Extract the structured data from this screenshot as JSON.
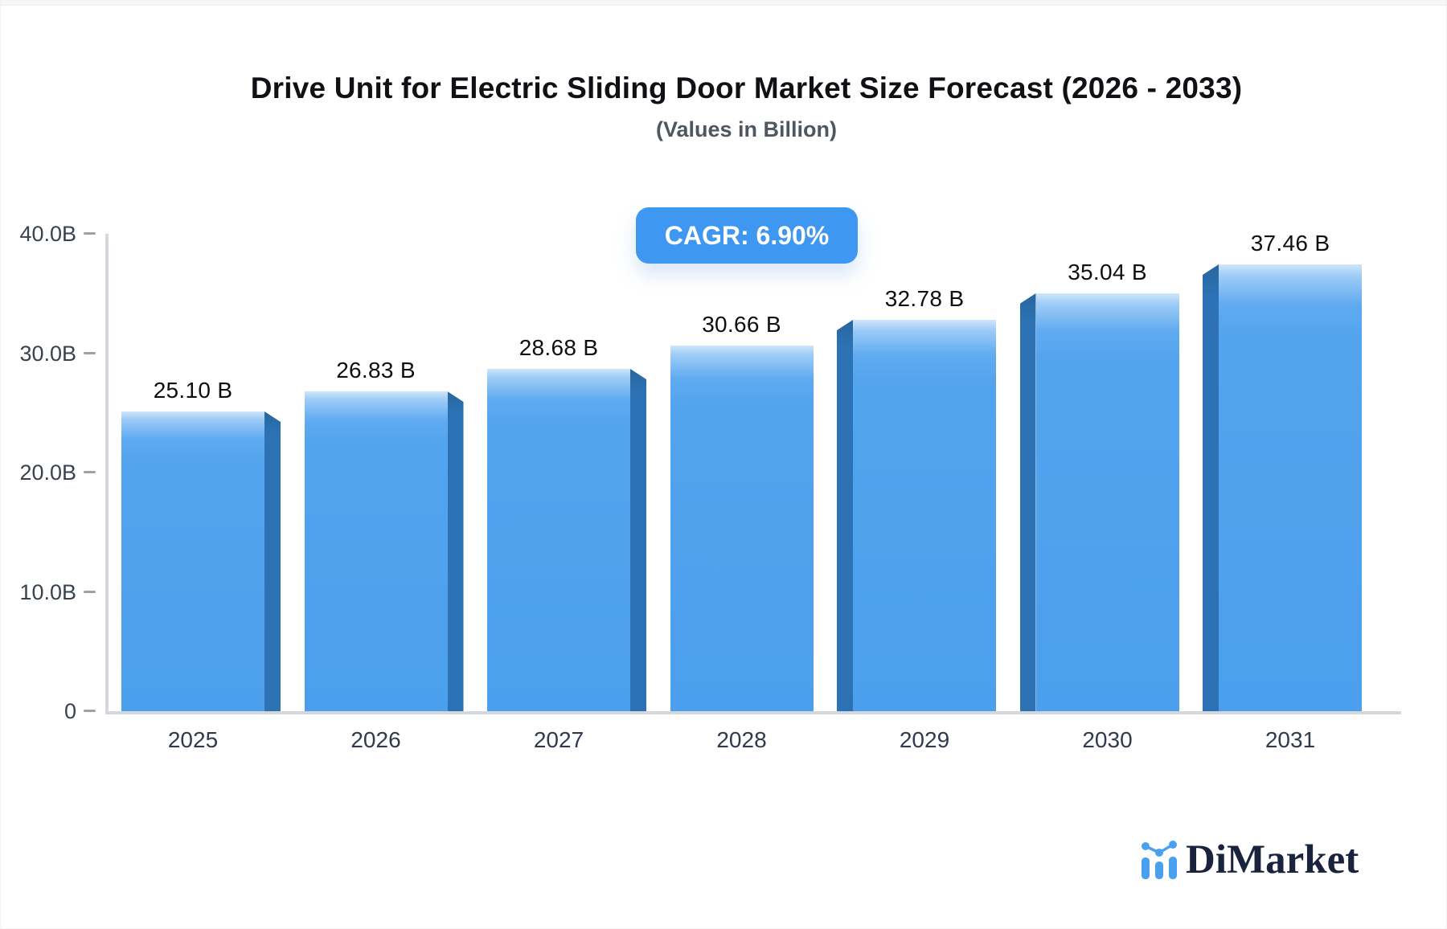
{
  "header": {
    "title": "Drive Unit for Electric Sliding Door Market Size Forecast (2026 - 2033)",
    "subtitle": "(Values in Billion)",
    "cagr_label": "CAGR: 6.90%"
  },
  "footer": {
    "brand": "DiMarket",
    "brand_icon": "bar-line-chart-icon"
  },
  "colors": {
    "bar_face": "#4c9fec",
    "bar_face_highlight": "#9fccf7",
    "bar_side": "#2d72b4",
    "badge_bg": "#3e97f0",
    "axis_line": "#d4d8dc",
    "tick_text": "#39424e",
    "year_text": "#2f3b4c",
    "value_text": "#0d0f12",
    "brand_blue": "#4aa0f0",
    "brand_navy": "#19233e"
  },
  "chart_data": {
    "type": "bar",
    "title": "Drive Unit for Electric Sliding Door Market Size Forecast (2026 - 2033)",
    "subtitle": "(Values in Billion)",
    "annotation": "CAGR: 6.90%",
    "categories": [
      "2025",
      "2026",
      "2027",
      "2028",
      "2029",
      "2030",
      "2031"
    ],
    "values": [
      25.1,
      26.83,
      28.68,
      30.66,
      32.78,
      35.04,
      37.46
    ],
    "value_labels": [
      "25.10 B",
      "26.83 B",
      "28.68 B",
      "30.66 B",
      "32.78 B",
      "35.04 B",
      "37.46 B"
    ],
    "xlabel": "",
    "ylabel": "",
    "ylim": [
      0,
      40
    ],
    "yticks": [
      {
        "value": 0,
        "label": "0"
      },
      {
        "value": 10,
        "label": "10.0B"
      },
      {
        "value": 20,
        "label": "20.0B"
      },
      {
        "value": 30,
        "label": "30.0B"
      },
      {
        "value": 40,
        "label": "40.0B"
      }
    ],
    "grid": false,
    "legend": false,
    "style": "3d-perspective-bars"
  }
}
